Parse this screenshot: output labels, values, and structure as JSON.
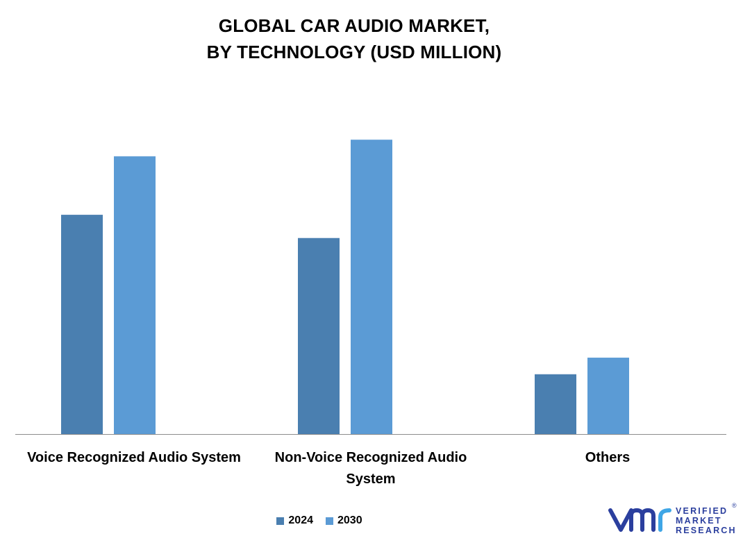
{
  "chart_data": {
    "type": "bar",
    "title_lines": [
      "GLOBAL CAR AUDIO MARKET,",
      "BY TECHNOLOGY  (USD MILLION)"
    ],
    "categories": [
      [
        "Voice Recognized Audio System"
      ],
      [
        "Non-Voice Recognized Audio",
        "System"
      ],
      [
        "Others"
      ]
    ],
    "series": [
      {
        "name": "2024",
        "color": "#4a7fb0",
        "values": [
          330,
          295,
          90
        ]
      },
      {
        "name": "2030",
        "color": "#5b9bd5",
        "values": [
          418,
          443,
          115
        ]
      }
    ],
    "ylim": [
      0,
      480
    ],
    "grid": false,
    "legend_position": "bottom-center"
  },
  "logo": {
    "lines": [
      "VERIFIED",
      "MARKET",
      "RESEARCH"
    ],
    "registered": "®",
    "color": "#2b3f9e"
  }
}
